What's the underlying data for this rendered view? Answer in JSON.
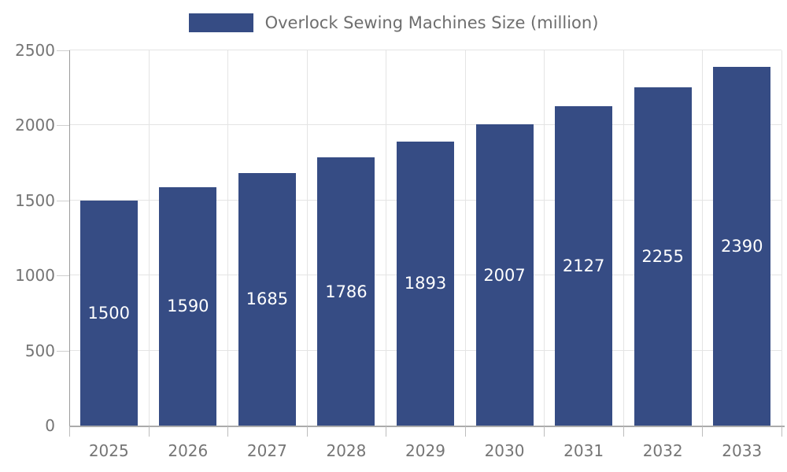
{
  "legend": {
    "label": "Overlock Sewing Machines Size (million)"
  },
  "colors": {
    "bar": "#364C84",
    "axis_text": "#757575",
    "legend_text": "#6e6e6e",
    "grid": "#e4e4e4",
    "axis_line": "#ababab",
    "value_label_text": "#ffffff",
    "background": "#ffffff"
  },
  "chart_data": {
    "type": "bar",
    "title": "",
    "xlabel": "",
    "ylabel": "",
    "categories": [
      "2025",
      "2026",
      "2027",
      "2028",
      "2029",
      "2030",
      "2031",
      "2032",
      "2033"
    ],
    "values": [
      1500,
      1590,
      1685,
      1786,
      1893,
      2007,
      2127,
      2255,
      2390
    ],
    "series_name": "Overlock Sewing Machines Size (million)",
    "ylim": [
      0,
      2500
    ],
    "yticks": [
      0,
      500,
      1000,
      1500,
      2000,
      2500
    ],
    "grid": true,
    "legend_position": "top-center",
    "value_labels": "inside-center"
  }
}
